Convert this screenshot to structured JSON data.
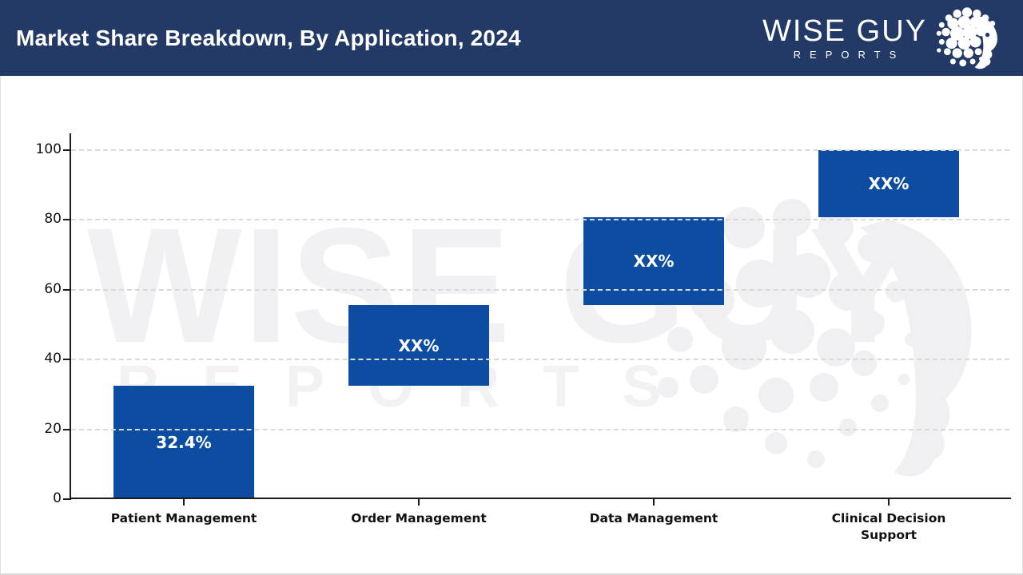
{
  "header": {
    "title": "Market Share Breakdown, By Application, 2024",
    "background_color": "#233a66",
    "text_color": "#ffffff"
  },
  "brand": {
    "line1": "WISE GUY",
    "line2": "REPORTS"
  },
  "watermark": {
    "line1": "WISE GUY",
    "line2": "REPORTS"
  },
  "chart_data": {
    "type": "bar",
    "subtype": "waterfall-floating-bars",
    "title": "Market Share Breakdown, By Application, 2024",
    "categories": [
      "Patient Management",
      "Order Management",
      "Data Management",
      "Clinical Decision Support"
    ],
    "series": [
      {
        "name": "Market Share (%)",
        "segments": [
          {
            "category": "Patient Management",
            "base": 0,
            "top": 32.4,
            "label": "32.4%"
          },
          {
            "category": "Order Management",
            "base": 32.4,
            "top": 55.5,
            "label": "XX%"
          },
          {
            "category": "Data Management",
            "base": 55.5,
            "top": 80.6,
            "label": "XX%"
          },
          {
            "category": "Clinical Decision Support",
            "base": 80.6,
            "top": 100,
            "label": "XX%"
          }
        ]
      }
    ],
    "xlabel": "",
    "ylabel": "",
    "ylim": [
      0,
      105
    ],
    "yticks": [
      0,
      20,
      40,
      60,
      80,
      100
    ],
    "grid": "horizontal-dashed",
    "gridline_color": "#d9d9d9",
    "legend": "none",
    "bar_color": "#0d4da1",
    "bar_label_color": "#ffffff",
    "axis_color": "#1a1a1a"
  }
}
